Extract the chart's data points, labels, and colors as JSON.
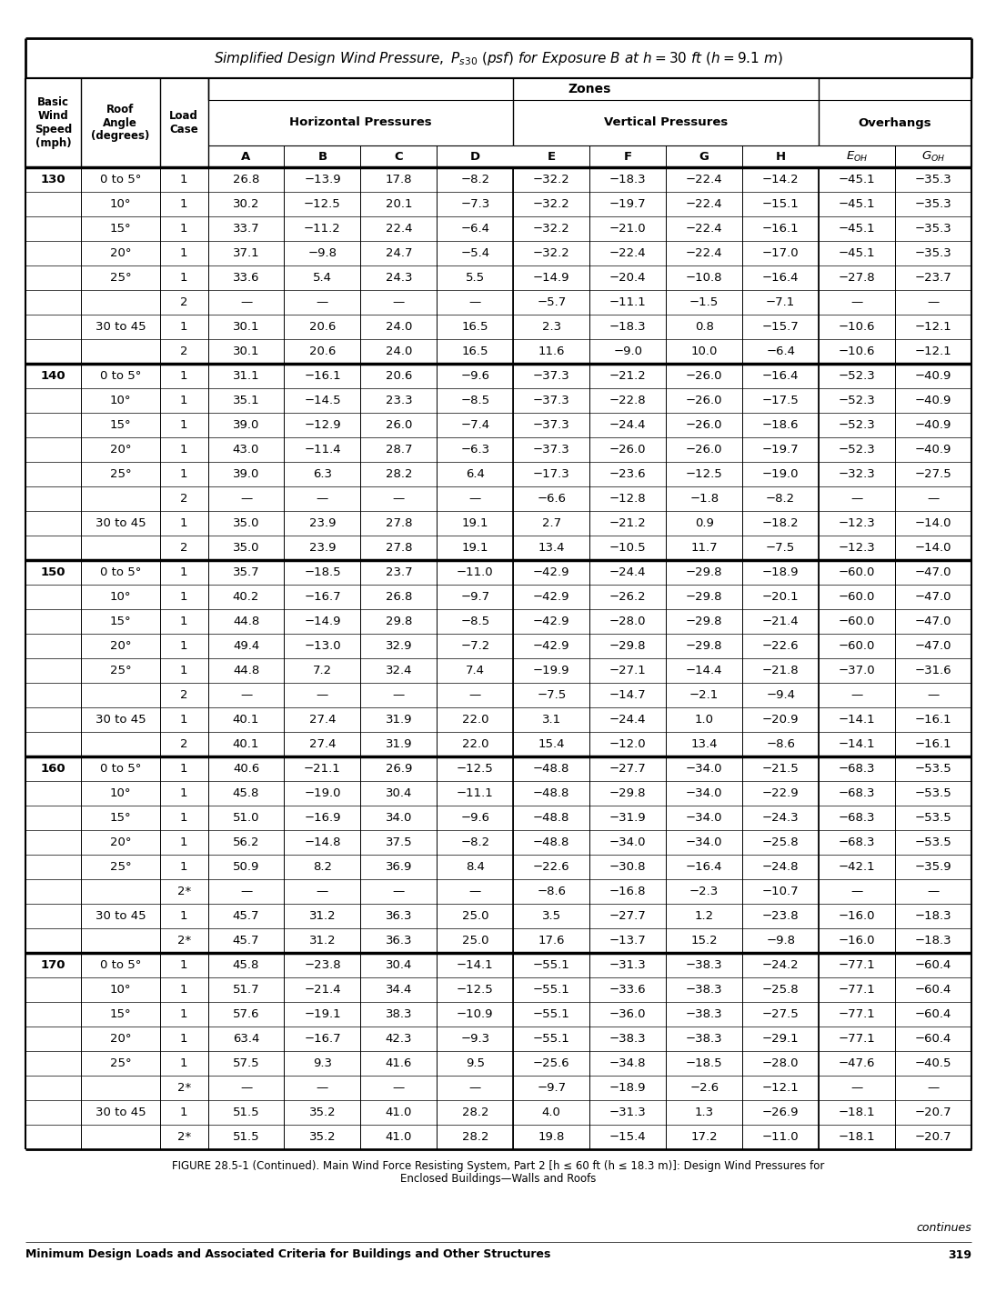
{
  "rows": [
    [
      "130",
      "0 to 5°",
      "1",
      "26.8",
      "−13.9",
      "17.8",
      "−8.2",
      "−32.2",
      "−18.3",
      "−22.4",
      "−14.2",
      "−45.1",
      "−35.3"
    ],
    [
      "",
      "10°",
      "1",
      "30.2",
      "−12.5",
      "20.1",
      "−7.3",
      "−32.2",
      "−19.7",
      "−22.4",
      "−15.1",
      "−45.1",
      "−35.3"
    ],
    [
      "",
      "15°",
      "1",
      "33.7",
      "−11.2",
      "22.4",
      "−6.4",
      "−32.2",
      "−21.0",
      "−22.4",
      "−16.1",
      "−45.1",
      "−35.3"
    ],
    [
      "",
      "20°",
      "1",
      "37.1",
      "−9.8",
      "24.7",
      "−5.4",
      "−32.2",
      "−22.4",
      "−22.4",
      "−17.0",
      "−45.1",
      "−35.3"
    ],
    [
      "",
      "25°",
      "1",
      "33.6",
      "5.4",
      "24.3",
      "5.5",
      "−14.9",
      "−20.4",
      "−10.8",
      "−16.4",
      "−27.8",
      "−23.7"
    ],
    [
      "",
      "",
      "2",
      "—",
      "—",
      "—",
      "—",
      "−5.7",
      "−11.1",
      "−1.5",
      "−7.1",
      "—",
      "—"
    ],
    [
      "",
      "30 to 45",
      "1",
      "30.1",
      "20.6",
      "24.0",
      "16.5",
      "2.3",
      "−18.3",
      "0.8",
      "−15.7",
      "−10.6",
      "−12.1"
    ],
    [
      "",
      "",
      "2",
      "30.1",
      "20.6",
      "24.0",
      "16.5",
      "11.6",
      "−9.0",
      "10.0",
      "−6.4",
      "−10.6",
      "−12.1"
    ],
    [
      "140",
      "0 to 5°",
      "1",
      "31.1",
      "−16.1",
      "20.6",
      "−9.6",
      "−37.3",
      "−21.2",
      "−26.0",
      "−16.4",
      "−52.3",
      "−40.9"
    ],
    [
      "",
      "10°",
      "1",
      "35.1",
      "−14.5",
      "23.3",
      "−8.5",
      "−37.3",
      "−22.8",
      "−26.0",
      "−17.5",
      "−52.3",
      "−40.9"
    ],
    [
      "",
      "15°",
      "1",
      "39.0",
      "−12.9",
      "26.0",
      "−7.4",
      "−37.3",
      "−24.4",
      "−26.0",
      "−18.6",
      "−52.3",
      "−40.9"
    ],
    [
      "",
      "20°",
      "1",
      "43.0",
      "−11.4",
      "28.7",
      "−6.3",
      "−37.3",
      "−26.0",
      "−26.0",
      "−19.7",
      "−52.3",
      "−40.9"
    ],
    [
      "",
      "25°",
      "1",
      "39.0",
      "6.3",
      "28.2",
      "6.4",
      "−17.3",
      "−23.6",
      "−12.5",
      "−19.0",
      "−32.3",
      "−27.5"
    ],
    [
      "",
      "",
      "2",
      "—",
      "—",
      "—",
      "—",
      "−6.6",
      "−12.8",
      "−1.8",
      "−8.2",
      "—",
      "—"
    ],
    [
      "",
      "30 to 45",
      "1",
      "35.0",
      "23.9",
      "27.8",
      "19.1",
      "2.7",
      "−21.2",
      "0.9",
      "−18.2",
      "−12.3",
      "−14.0"
    ],
    [
      "",
      "",
      "2",
      "35.0",
      "23.9",
      "27.8",
      "19.1",
      "13.4",
      "−10.5",
      "11.7",
      "−7.5",
      "−12.3",
      "−14.0"
    ],
    [
      "150",
      "0 to 5°",
      "1",
      "35.7",
      "−18.5",
      "23.7",
      "−11.0",
      "−42.9",
      "−24.4",
      "−29.8",
      "−18.9",
      "−60.0",
      "−47.0"
    ],
    [
      "",
      "10°",
      "1",
      "40.2",
      "−16.7",
      "26.8",
      "−9.7",
      "−42.9",
      "−26.2",
      "−29.8",
      "−20.1",
      "−60.0",
      "−47.0"
    ],
    [
      "",
      "15°",
      "1",
      "44.8",
      "−14.9",
      "29.8",
      "−8.5",
      "−42.9",
      "−28.0",
      "−29.8",
      "−21.4",
      "−60.0",
      "−47.0"
    ],
    [
      "",
      "20°",
      "1",
      "49.4",
      "−13.0",
      "32.9",
      "−7.2",
      "−42.9",
      "−29.8",
      "−29.8",
      "−22.6",
      "−60.0",
      "−47.0"
    ],
    [
      "",
      "25°",
      "1",
      "44.8",
      "7.2",
      "32.4",
      "7.4",
      "−19.9",
      "−27.1",
      "−14.4",
      "−21.8",
      "−37.0",
      "−31.6"
    ],
    [
      "",
      "",
      "2",
      "—",
      "—",
      "—",
      "—",
      "−7.5",
      "−14.7",
      "−2.1",
      "−9.4",
      "—",
      "—"
    ],
    [
      "",
      "30 to 45",
      "1",
      "40.1",
      "27.4",
      "31.9",
      "22.0",
      "3.1",
      "−24.4",
      "1.0",
      "−20.9",
      "−14.1",
      "−16.1"
    ],
    [
      "",
      "",
      "2",
      "40.1",
      "27.4",
      "31.9",
      "22.0",
      "15.4",
      "−12.0",
      "13.4",
      "−8.6",
      "−14.1",
      "−16.1"
    ],
    [
      "160",
      "0 to 5°",
      "1",
      "40.6",
      "−21.1",
      "26.9",
      "−12.5",
      "−48.8",
      "−27.7",
      "−34.0",
      "−21.5",
      "−68.3",
      "−53.5"
    ],
    [
      "",
      "10°",
      "1",
      "45.8",
      "−19.0",
      "30.4",
      "−11.1",
      "−48.8",
      "−29.8",
      "−34.0",
      "−22.9",
      "−68.3",
      "−53.5"
    ],
    [
      "",
      "15°",
      "1",
      "51.0",
      "−16.9",
      "34.0",
      "−9.6",
      "−48.8",
      "−31.9",
      "−34.0",
      "−24.3",
      "−68.3",
      "−53.5"
    ],
    [
      "",
      "20°",
      "1",
      "56.2",
      "−14.8",
      "37.5",
      "−8.2",
      "−48.8",
      "−34.0",
      "−34.0",
      "−25.8",
      "−68.3",
      "−53.5"
    ],
    [
      "",
      "25°",
      "1",
      "50.9",
      "8.2",
      "36.9",
      "8.4",
      "−22.6",
      "−30.8",
      "−16.4",
      "−24.8",
      "−42.1",
      "−35.9"
    ],
    [
      "",
      "",
      "2*",
      "—",
      "—",
      "—",
      "—",
      "−8.6",
      "−16.8",
      "−2.3",
      "−10.7",
      "—",
      "—"
    ],
    [
      "",
      "30 to 45",
      "1",
      "45.7",
      "31.2",
      "36.3",
      "25.0",
      "3.5",
      "−27.7",
      "1.2",
      "−23.8",
      "−16.0",
      "−18.3"
    ],
    [
      "",
      "",
      "2*",
      "45.7",
      "31.2",
      "36.3",
      "25.0",
      "17.6",
      "−13.7",
      "15.2",
      "−9.8",
      "−16.0",
      "−18.3"
    ],
    [
      "170",
      "0 to 5°",
      "1",
      "45.8",
      "−23.8",
      "30.4",
      "−14.1",
      "−55.1",
      "−31.3",
      "−38.3",
      "−24.2",
      "−77.1",
      "−60.4"
    ],
    [
      "",
      "10°",
      "1",
      "51.7",
      "−21.4",
      "34.4",
      "−12.5",
      "−55.1",
      "−33.6",
      "−38.3",
      "−25.8",
      "−77.1",
      "−60.4"
    ],
    [
      "",
      "15°",
      "1",
      "57.6",
      "−19.1",
      "38.3",
      "−10.9",
      "−55.1",
      "−36.0",
      "−38.3",
      "−27.5",
      "−77.1",
      "−60.4"
    ],
    [
      "",
      "20°",
      "1",
      "63.4",
      "−16.7",
      "42.3",
      "−9.3",
      "−55.1",
      "−38.3",
      "−38.3",
      "−29.1",
      "−77.1",
      "−60.4"
    ],
    [
      "",
      "25°",
      "1",
      "57.5",
      "9.3",
      "41.6",
      "9.5",
      "−25.6",
      "−34.8",
      "−18.5",
      "−28.0",
      "−47.6",
      "−40.5"
    ],
    [
      "",
      "",
      "2*",
      "—",
      "—",
      "—",
      "—",
      "−9.7",
      "−18.9",
      "−2.6",
      "−12.1",
      "—",
      "—"
    ],
    [
      "",
      "30 to 45",
      "1",
      "51.5",
      "35.2",
      "41.0",
      "28.2",
      "4.0",
      "−31.3",
      "1.3",
      "−26.9",
      "−18.1",
      "−20.7"
    ],
    [
      "",
      "",
      "2*",
      "51.5",
      "35.2",
      "41.0",
      "28.2",
      "19.8",
      "−15.4",
      "17.2",
      "−11.0",
      "−18.1",
      "−20.7"
    ]
  ],
  "caption_line1": "FIGURE 28.5-1 (​Continued​). Main Wind Force Resisting System, Part 2 [h ≤ 60 ft (h ≤ 18.3 m)]: Design Wind Pressures for",
  "caption_line2": "Enclosed Buildings—Walls and Roofs",
  "footer": "Minimum Design Loads and Associated Criteria for Buildings and Other Structures",
  "page": "319",
  "continues": "continues",
  "thick_border_rows": [
    0,
    8,
    16,
    24,
    32
  ]
}
